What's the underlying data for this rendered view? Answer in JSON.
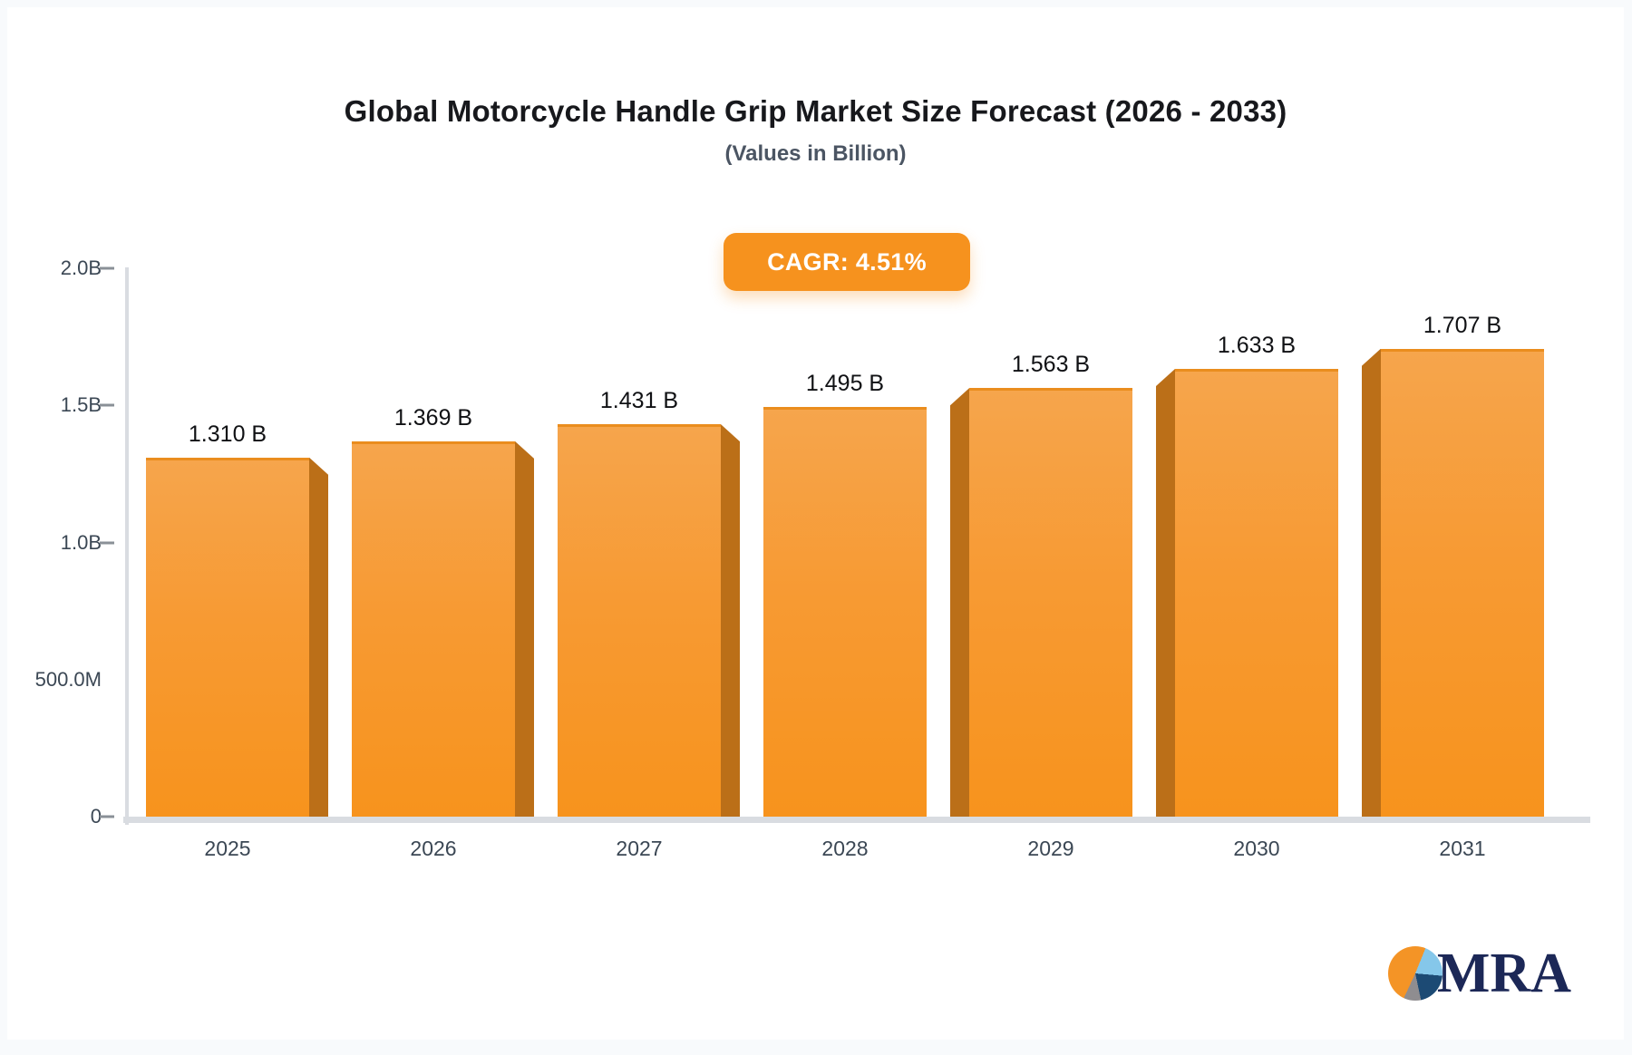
{
  "title": "Global Motorcycle Handle Grip Market Size Forecast (2026 - 2033)",
  "subtitle": "(Values in Billion)",
  "badge": {
    "label": "CAGR: 4.51%",
    "bg_color": "#f6921e",
    "text_color": "#ffffff"
  },
  "chart_data": {
    "type": "bar",
    "title": "Global Motorcycle Handle Grip Market Size Forecast (2026 - 2033)",
    "subtitle": "(Values in Billion)",
    "categories": [
      "2025",
      "2026",
      "2027",
      "2028",
      "2029",
      "2030",
      "2031"
    ],
    "values": [
      1.31,
      1.369,
      1.431,
      1.495,
      1.563,
      1.633,
      1.707
    ],
    "value_labels": [
      "1.310 B",
      "1.369 B",
      "1.431 B",
      "1.495 B",
      "1.563 B",
      "1.633 B",
      "1.707 B"
    ],
    "unit": "Billion",
    "xlabel": "",
    "ylabel": "",
    "ylim": [
      0,
      2.0
    ],
    "y_ticks": [
      {
        "label": "2.0B",
        "value": 2.0,
        "dash": true
      },
      {
        "label": "1.5B",
        "value": 1.5,
        "dash": true
      },
      {
        "label": "1.0B",
        "value": 1.0,
        "dash": true
      },
      {
        "label": "500.0M",
        "value": 0.5,
        "dash": false
      },
      {
        "label": "0",
        "value": 0.0,
        "dash": true
      }
    ],
    "grid": false,
    "legend": "none",
    "bar_color_top": "#f6a54c",
    "bar_color_bottom": "#f7931d",
    "bar_side_color": "#bb6f18",
    "axis_color": "#d9dce1",
    "label_color": "#3b4754"
  },
  "logo": {
    "text": "MRA",
    "text_color": "#1c2857",
    "pie_colors": {
      "orange": "#f49426",
      "light_blue": "#85c7ea",
      "navy": "#1c4a74",
      "gray": "#8f8d90"
    }
  }
}
